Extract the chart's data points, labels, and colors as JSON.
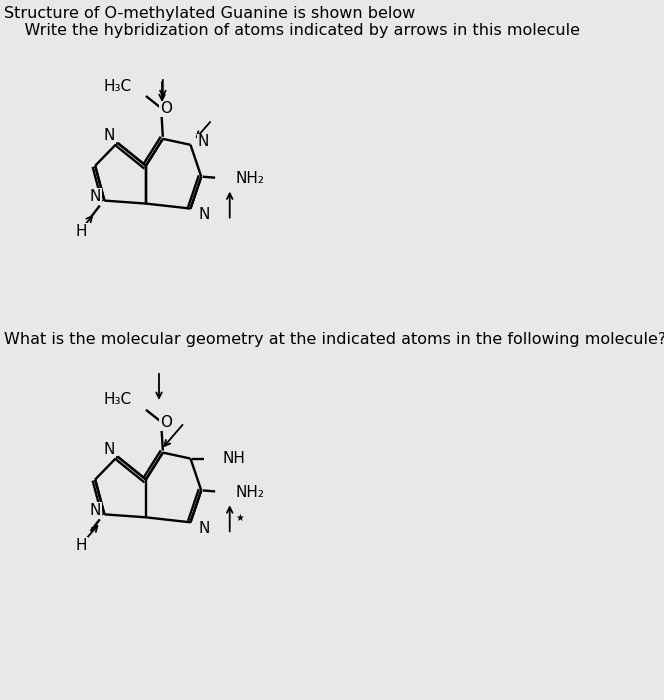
{
  "title1": "Structure of O-methylated Guanine is shown below",
  "title2": "    Write the hybridization of atoms indicated by arrows in this molecule",
  "title3": "What is the molecular geometry at the indicated atoms in the following molecule?",
  "bg_color": "#e8e8e8",
  "text_color": "#000000",
  "figsize": [
    6.64,
    7.0
  ],
  "dpi": 100
}
